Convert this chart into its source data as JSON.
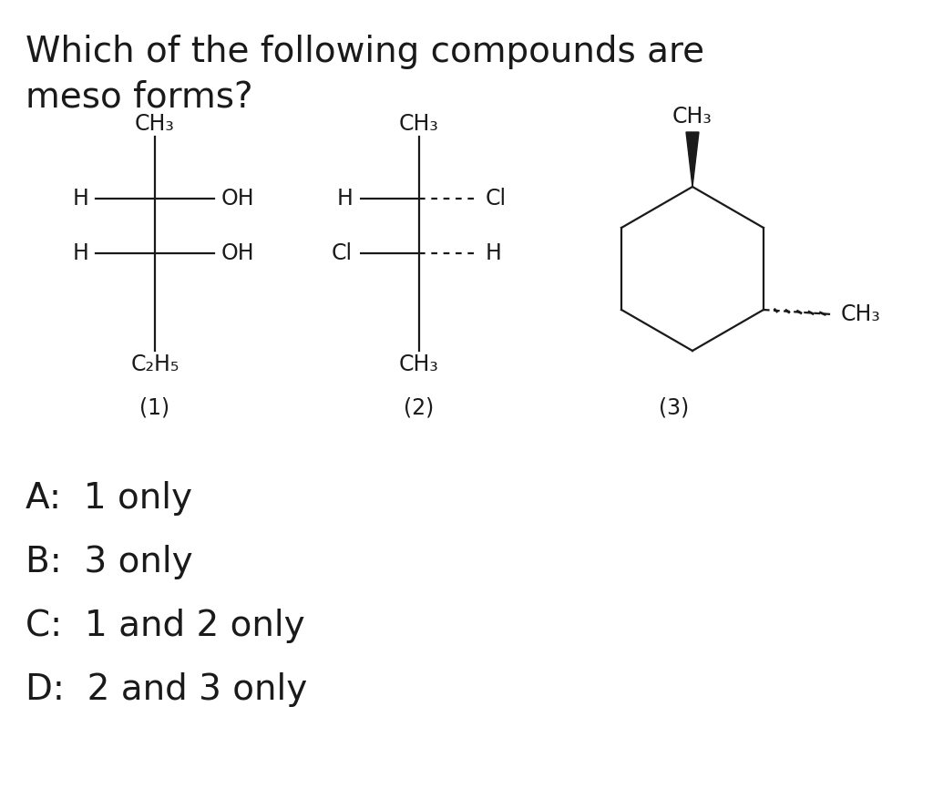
{
  "title_line1": "Which of the following compounds are",
  "title_line2": "meso forms?",
  "question_fontsize": 28,
  "chem_fontsize": 17,
  "answer_fontsize": 28,
  "answers": [
    "A:  1 only",
    "B:  3 only",
    "C:  1 and 2 only",
    "D:  2 and 3 only"
  ],
  "bg_color": "#ffffff",
  "text_color": "#1a1a1a"
}
